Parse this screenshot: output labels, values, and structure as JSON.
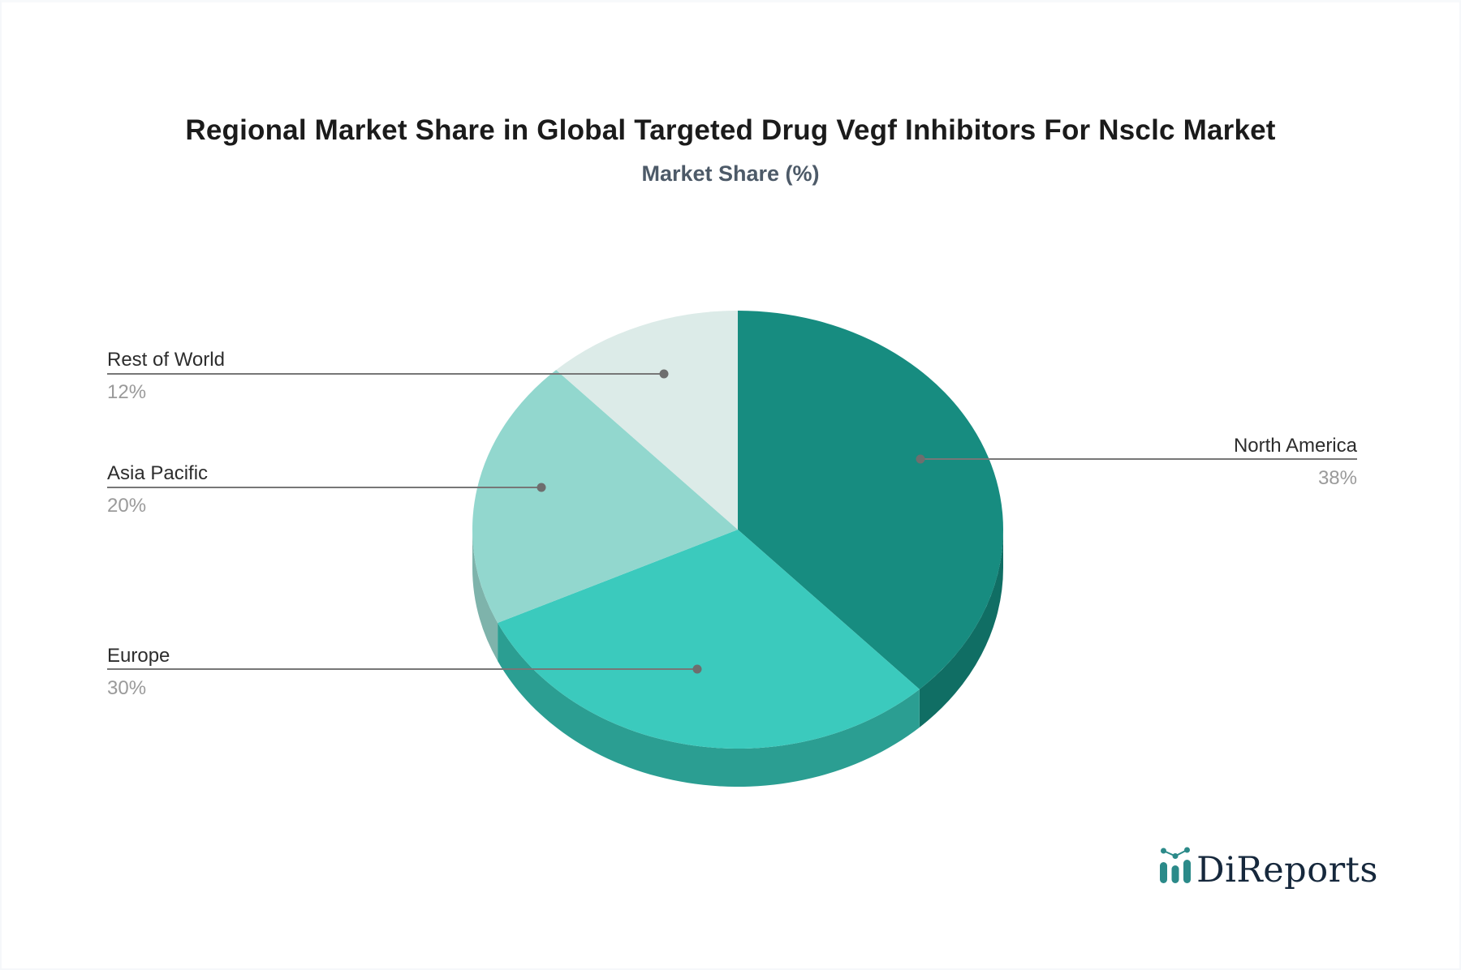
{
  "header": {
    "title": "Regional Market Share in Global Targeted Drug Vegf Inhibitors For Nsclc Market",
    "subtitle": "Market Share (%)",
    "title_color": "#1b1b1b",
    "subtitle_color": "#4d5a68"
  },
  "chart_data": {
    "type": "pie",
    "title": "Regional Market Share in Global Targeted Drug Vegf Inhibitors For Nsclc Market",
    "subtitle": "Market Share (%)",
    "unit": "%",
    "effect_3d": true,
    "direction": "clockwise",
    "start_angle": "12-oclock",
    "legend_position": "callout-labels",
    "slices": [
      {
        "label": "North America",
        "value": 38,
        "pct_label": "38%",
        "color": "#178c80",
        "rim_color": "#106e64",
        "label_side": "right"
      },
      {
        "label": "Europe",
        "value": 30,
        "pct_label": "30%",
        "color": "#3bcabd",
        "rim_color": "#2b9e92",
        "label_side": "left"
      },
      {
        "label": "Asia Pacific",
        "value": 20,
        "pct_label": "20%",
        "color": "#92d7ce",
        "rim_color": "#7eb3ab",
        "label_side": "left"
      },
      {
        "label": "Rest of World",
        "value": 12,
        "pct_label": "12%",
        "color": "#dcebe8",
        "rim_color": "#c2d6d2",
        "label_side": "left"
      }
    ],
    "label_color": "#2d2d2d",
    "pct_color": "#9a9a9a",
    "line_color": "#777777",
    "dot_color": "#6e6e6e"
  },
  "footer": {
    "logo_text": "DiReports",
    "logo_text_color": "#16283c",
    "logo_icon": "bar-chart-trend-icon",
    "logo_icon_color": "#2b8a89"
  }
}
